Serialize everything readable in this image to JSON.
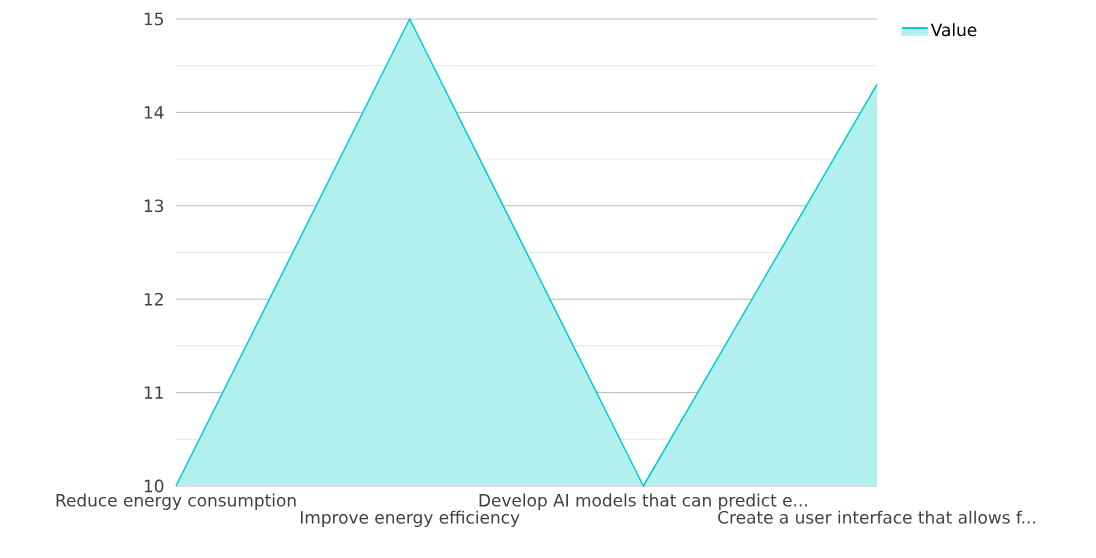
{
  "chart_data": {
    "type": "area",
    "categories": [
      "Reduce energy consumption",
      "Improve energy efficiency",
      "Develop AI models that can predict e...",
      "Create a user interface that allows f..."
    ],
    "series": [
      {
        "name": "Value",
        "color": "#00cccc",
        "values": [
          10,
          15,
          10,
          14.3
        ]
      }
    ],
    "ylim": [
      10,
      15
    ],
    "yticks": [
      10,
      11,
      12,
      13,
      14,
      15
    ],
    "grid": "y",
    "legend": "top right"
  }
}
